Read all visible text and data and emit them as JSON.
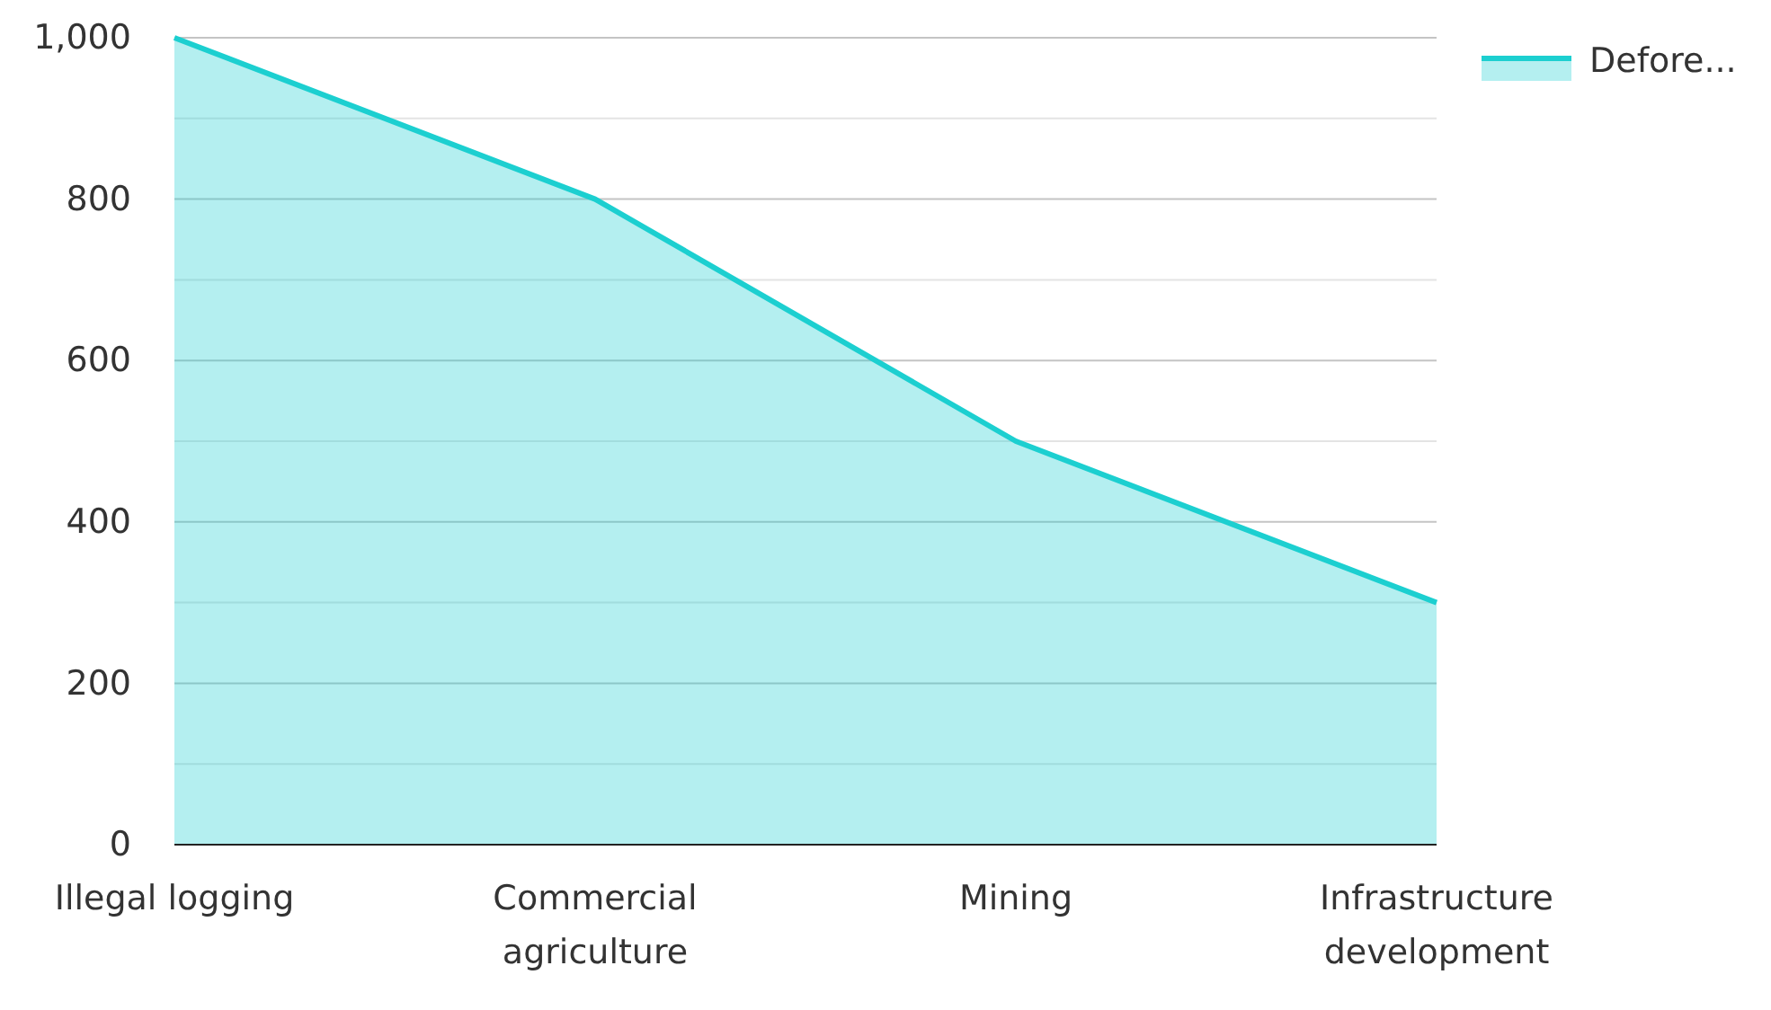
{
  "chart_data": {
    "type": "area",
    "categories": [
      "Illegal logging",
      "Commercial agriculture",
      "Mining",
      "Infrastructure development"
    ],
    "series": [
      {
        "name": "Defore...",
        "color": "#1ccfd0",
        "values": [
          1000,
          800,
          500,
          300
        ]
      }
    ],
    "ylim": [
      0,
      1000
    ],
    "yticks": [
      0,
      {
        "value": 100,
        "label": null
      },
      200,
      {
        "value": 300,
        "label": null
      },
      400,
      {
        "value": 500,
        "label": null
      },
      600,
      {
        "value": 700,
        "label": null
      },
      800,
      {
        "value": 900,
        "label": null
      },
      {
        "value": 1000,
        "label": "1,000"
      }
    ],
    "grid": "y",
    "legend": "top right"
  }
}
